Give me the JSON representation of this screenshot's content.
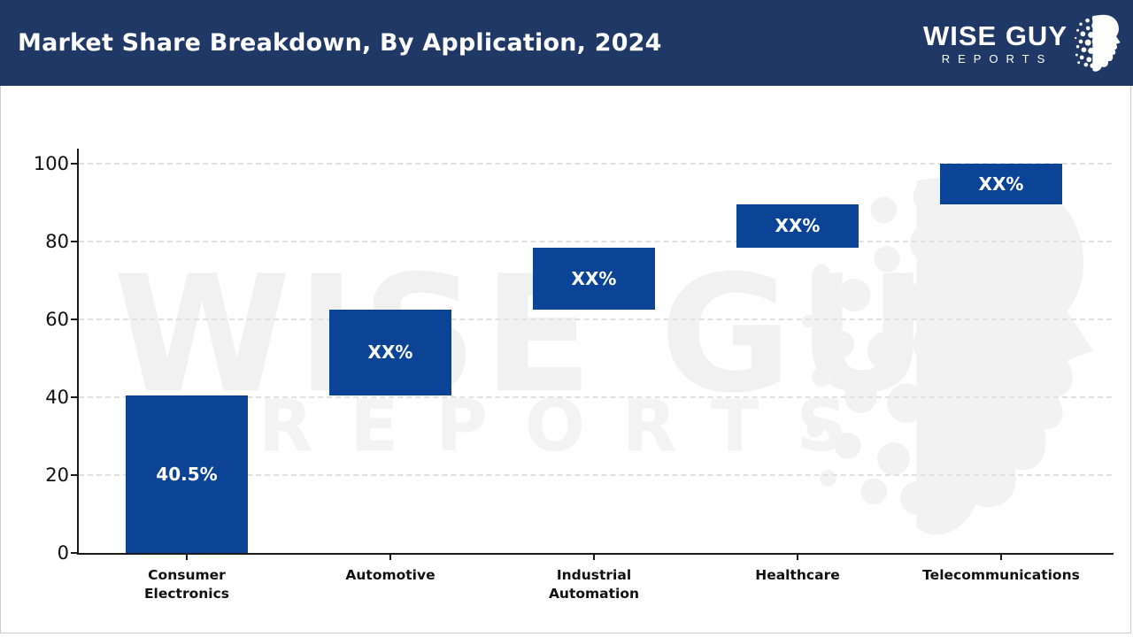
{
  "header": {
    "title": "Market Share Breakdown, By Application, 2024",
    "background_color": "#1f3866",
    "logo": {
      "brand": "WISE GUY",
      "sub": "REPORTS",
      "icon": "dotted-head-profile"
    }
  },
  "watermark": {
    "brand": "WISE GUY",
    "sub": "REPORTS",
    "icon": "dotted-head-profile"
  },
  "chart_data": {
    "type": "bar",
    "subtype": "waterfall",
    "title": "Market Share Breakdown, By Application, 2024",
    "categories": [
      "Consumer\nElectronics",
      "Automotive",
      "Industrial\nAutomation",
      "Healthcare",
      "Telecommunications"
    ],
    "bar_starts": [
      0,
      40.5,
      62.5,
      78.5,
      89.5
    ],
    "bar_ends": [
      40.5,
      62.5,
      78.5,
      89.5,
      100
    ],
    "values": [
      40.5,
      22,
      16,
      11,
      10.5
    ],
    "bar_labels": [
      "40.5%",
      "XX%",
      "XX%",
      "XX%",
      "XX%"
    ],
    "ylim": [
      0,
      100
    ],
    "yticks": [
      0,
      20,
      40,
      60,
      80,
      100
    ],
    "xlabel": "",
    "ylabel": "",
    "grid": "horizontal-dashed",
    "legend": "none",
    "bar_color": "#0b4397",
    "bar_label_color": "#ffffff"
  }
}
